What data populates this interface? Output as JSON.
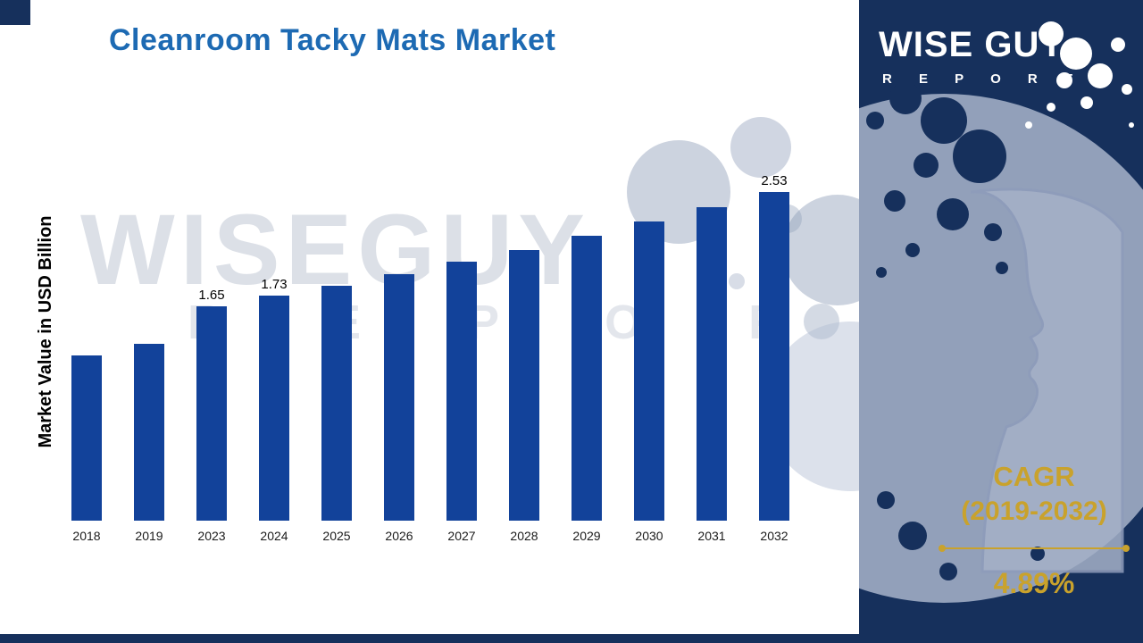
{
  "title": "Cleanroom Tacky Mats Market",
  "y_axis_label": "Market Value in USD Billion",
  "watermark": {
    "line1": "WISEGUY",
    "line2": "R E P O R T S"
  },
  "side_panel": {
    "logo": {
      "wordmark": "WISE GUY",
      "subtext": "R E P O R T S"
    },
    "cagr": {
      "label": "CAGR",
      "range": "(2019-2032)",
      "value": "4.89%"
    }
  },
  "colors": {
    "title_blue": "#1d6ab3",
    "bar_blue": "#12429a",
    "panel_navy": "#16305c",
    "gold": "#c9a22c"
  },
  "chart_data": {
    "type": "bar",
    "title": "Cleanroom Tacky Mats Market",
    "xlabel": "",
    "ylabel": "Market Value in USD Billion",
    "categories": [
      "2018",
      "2019",
      "2023",
      "2024",
      "2025",
      "2026",
      "2027",
      "2028",
      "2029",
      "2030",
      "2031",
      "2032"
    ],
    "values": [
      1.27,
      1.36,
      1.65,
      1.73,
      1.81,
      1.9,
      1.99,
      2.08,
      2.19,
      2.3,
      2.41,
      2.53
    ],
    "point_labels": [
      "",
      "",
      "1.65",
      "1.73",
      "",
      "",
      "",
      "",
      "",
      "",
      "",
      "2.53"
    ],
    "bar_color": "#12429a",
    "ylim": [
      0,
      2.8
    ],
    "unit": "USD Billion",
    "grid": false,
    "legend": false
  }
}
